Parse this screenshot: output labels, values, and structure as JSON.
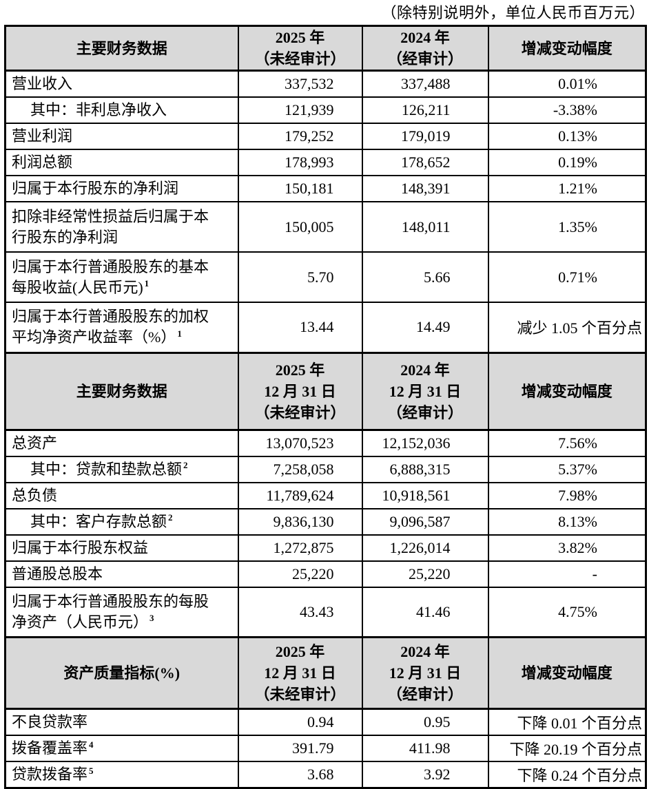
{
  "note": "（除特别说明外，单位人民币百万元）",
  "colors": {
    "header_bg": "#d9d9d9",
    "border": "#000000",
    "text": "#000000"
  },
  "sections": [
    {
      "header": {
        "title": "主要财务数据",
        "col2_lines": [
          "2025 年",
          "（未经审计）"
        ],
        "col3_lines": [
          "2024 年",
          "（经审计）"
        ],
        "col4": "增减变动幅度"
      },
      "rows": [
        {
          "label": "营业收入",
          "v2025": "337,532",
          "v2024": "337,488",
          "change": "0.01%"
        },
        {
          "label": "其中：非利息净收入",
          "v2025": "121,939",
          "v2024": "126,211",
          "change": "-3.38%"
        },
        {
          "label": "营业利润",
          "v2025": "179,252",
          "v2024": "179,019",
          "change": "0.13%"
        },
        {
          "label": "利润总额",
          "v2025": "178,993",
          "v2024": "178,652",
          "change": "0.19%"
        },
        {
          "label": "归属于本行股东的净利润",
          "v2025": "150,181",
          "v2024": "148,391",
          "change": "1.21%"
        },
        {
          "label": "扣除非经常性损益后归属于本行股东的净利润",
          "v2025": "150,005",
          "v2024": "148,011",
          "change": "1.35%"
        },
        {
          "label": "归属于本行普通股股东的基本每股收益(人民币元)",
          "sup": "1",
          "v2025": "5.70",
          "v2024": "5.66",
          "change": "0.71%"
        },
        {
          "label": "归属于本行普通股股东的加权平均净资产收益率（%）",
          "sup": "1",
          "v2025": "13.44",
          "v2024": "14.49",
          "change": "减少 1.05 个百分点"
        }
      ]
    },
    {
      "header": {
        "title": "主要财务数据",
        "col2_lines": [
          "2025 年",
          "12 月 31 日",
          "（未经审计）"
        ],
        "col3_lines": [
          "2024 年",
          "12 月 31 日",
          "（经审计）"
        ],
        "col4": "增减变动幅度"
      },
      "rows": [
        {
          "label": "总资产",
          "v2025": "13,070,523",
          "v2024": "12,152,036",
          "change": "7.56%"
        },
        {
          "label": "其中：贷款和垫款总额",
          "sup": "2",
          "v2025": "7,258,058",
          "v2024": "6,888,315",
          "change": "5.37%"
        },
        {
          "label": "总负债",
          "v2025": "11,789,624",
          "v2024": "10,918,561",
          "change": "7.98%"
        },
        {
          "label": "其中：客户存款总额",
          "sup": "2",
          "v2025": "9,836,130",
          "v2024": "9,096,587",
          "change": "8.13%"
        },
        {
          "label": "归属于本行股东权益",
          "v2025": "1,272,875",
          "v2024": "1,226,014",
          "change": "3.82%"
        },
        {
          "label": "普通股总股本",
          "v2025": "25,220",
          "v2024": "25,220",
          "change": "-"
        },
        {
          "label": "归属于本行普通股股东的每股净资产（人民币元）",
          "sup": "3",
          "v2025": "43.43",
          "v2024": "41.46",
          "change": "4.75%"
        }
      ]
    },
    {
      "header": {
        "title": "资产质量指标(%)",
        "col2_lines": [
          "2025 年",
          "12 月 31 日",
          "（未经审计）"
        ],
        "col3_lines": [
          "2024 年",
          "12 月 31 日",
          "（经审计）"
        ],
        "col4": "增减变动幅度"
      },
      "rows": [
        {
          "label": "不良贷款率",
          "v2025": "0.94",
          "v2024": "0.95",
          "change": "下降 0.01 个百分点"
        },
        {
          "label": "拨备覆盖率",
          "sup": "4",
          "v2025": "391.79",
          "v2024": "411.98",
          "change": "下降 20.19 个百分点"
        },
        {
          "label": "贷款拨备率",
          "sup": "5",
          "v2025": "3.68",
          "v2024": "3.92",
          "change": "下降 0.24 个百分点"
        }
      ]
    }
  ]
}
